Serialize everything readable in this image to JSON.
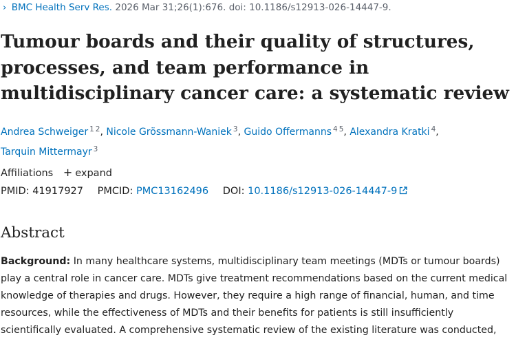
{
  "citation": {
    "chevron_icon": "chevron-right-icon",
    "journal": "BMC Health Serv Res.",
    "details": "2026 Mar 31;26(1):676. doi: 10.1186/s12913-026-14447-9."
  },
  "title": "Tumour boards and their quality of structures, processes, and team performance in multidisciplinary cancer care: a systematic review",
  "authors": [
    {
      "name": "Andrea Schweiger",
      "sups": [
        "1",
        "2"
      ],
      "sep": ","
    },
    {
      "name": "Nicole Grössmann-Waniek",
      "sups": [
        "3"
      ],
      "sep": ","
    },
    {
      "name": "Guido Offermanns",
      "sups": [
        "4",
        "5"
      ],
      "sep": ","
    },
    {
      "name": "Alexandra Kratki",
      "sups": [
        "4"
      ],
      "sep": ","
    },
    {
      "name": "Tarquin Mittermayr",
      "sups": [
        "3"
      ],
      "sep": ""
    }
  ],
  "affiliations": {
    "label": "Affiliations",
    "expand_icon": "plus-icon",
    "expand_label": "expand"
  },
  "ids": {
    "pmid_label": "PMID:",
    "pmid": "41917927",
    "pmcid_label": "PMCID:",
    "pmcid": "PMC13162496",
    "doi_label": "DOI:",
    "doi": "10.1186/s12913-026-14447-9",
    "doi_icon": "external-link-icon"
  },
  "abstract": {
    "heading": "Abstract",
    "background_label": "Background:",
    "background_text": "In many healthcare systems, multidisciplinary team meetings (MDTs or tumour boards) play a central role in cancer care. MDTs give treatment recommendations based on the current medical knowledge of therapies and drugs. However, they require a high range of financial, human, and time resources, while the effectiveness of MDTs and their benefits for patients is still insufficiently scientifically evaluated. A comprehensive systematic review of the existing literature was conducted,"
  },
  "colors": {
    "link": "#0071bc",
    "text": "#212121",
    "muted": "#5b616b"
  }
}
